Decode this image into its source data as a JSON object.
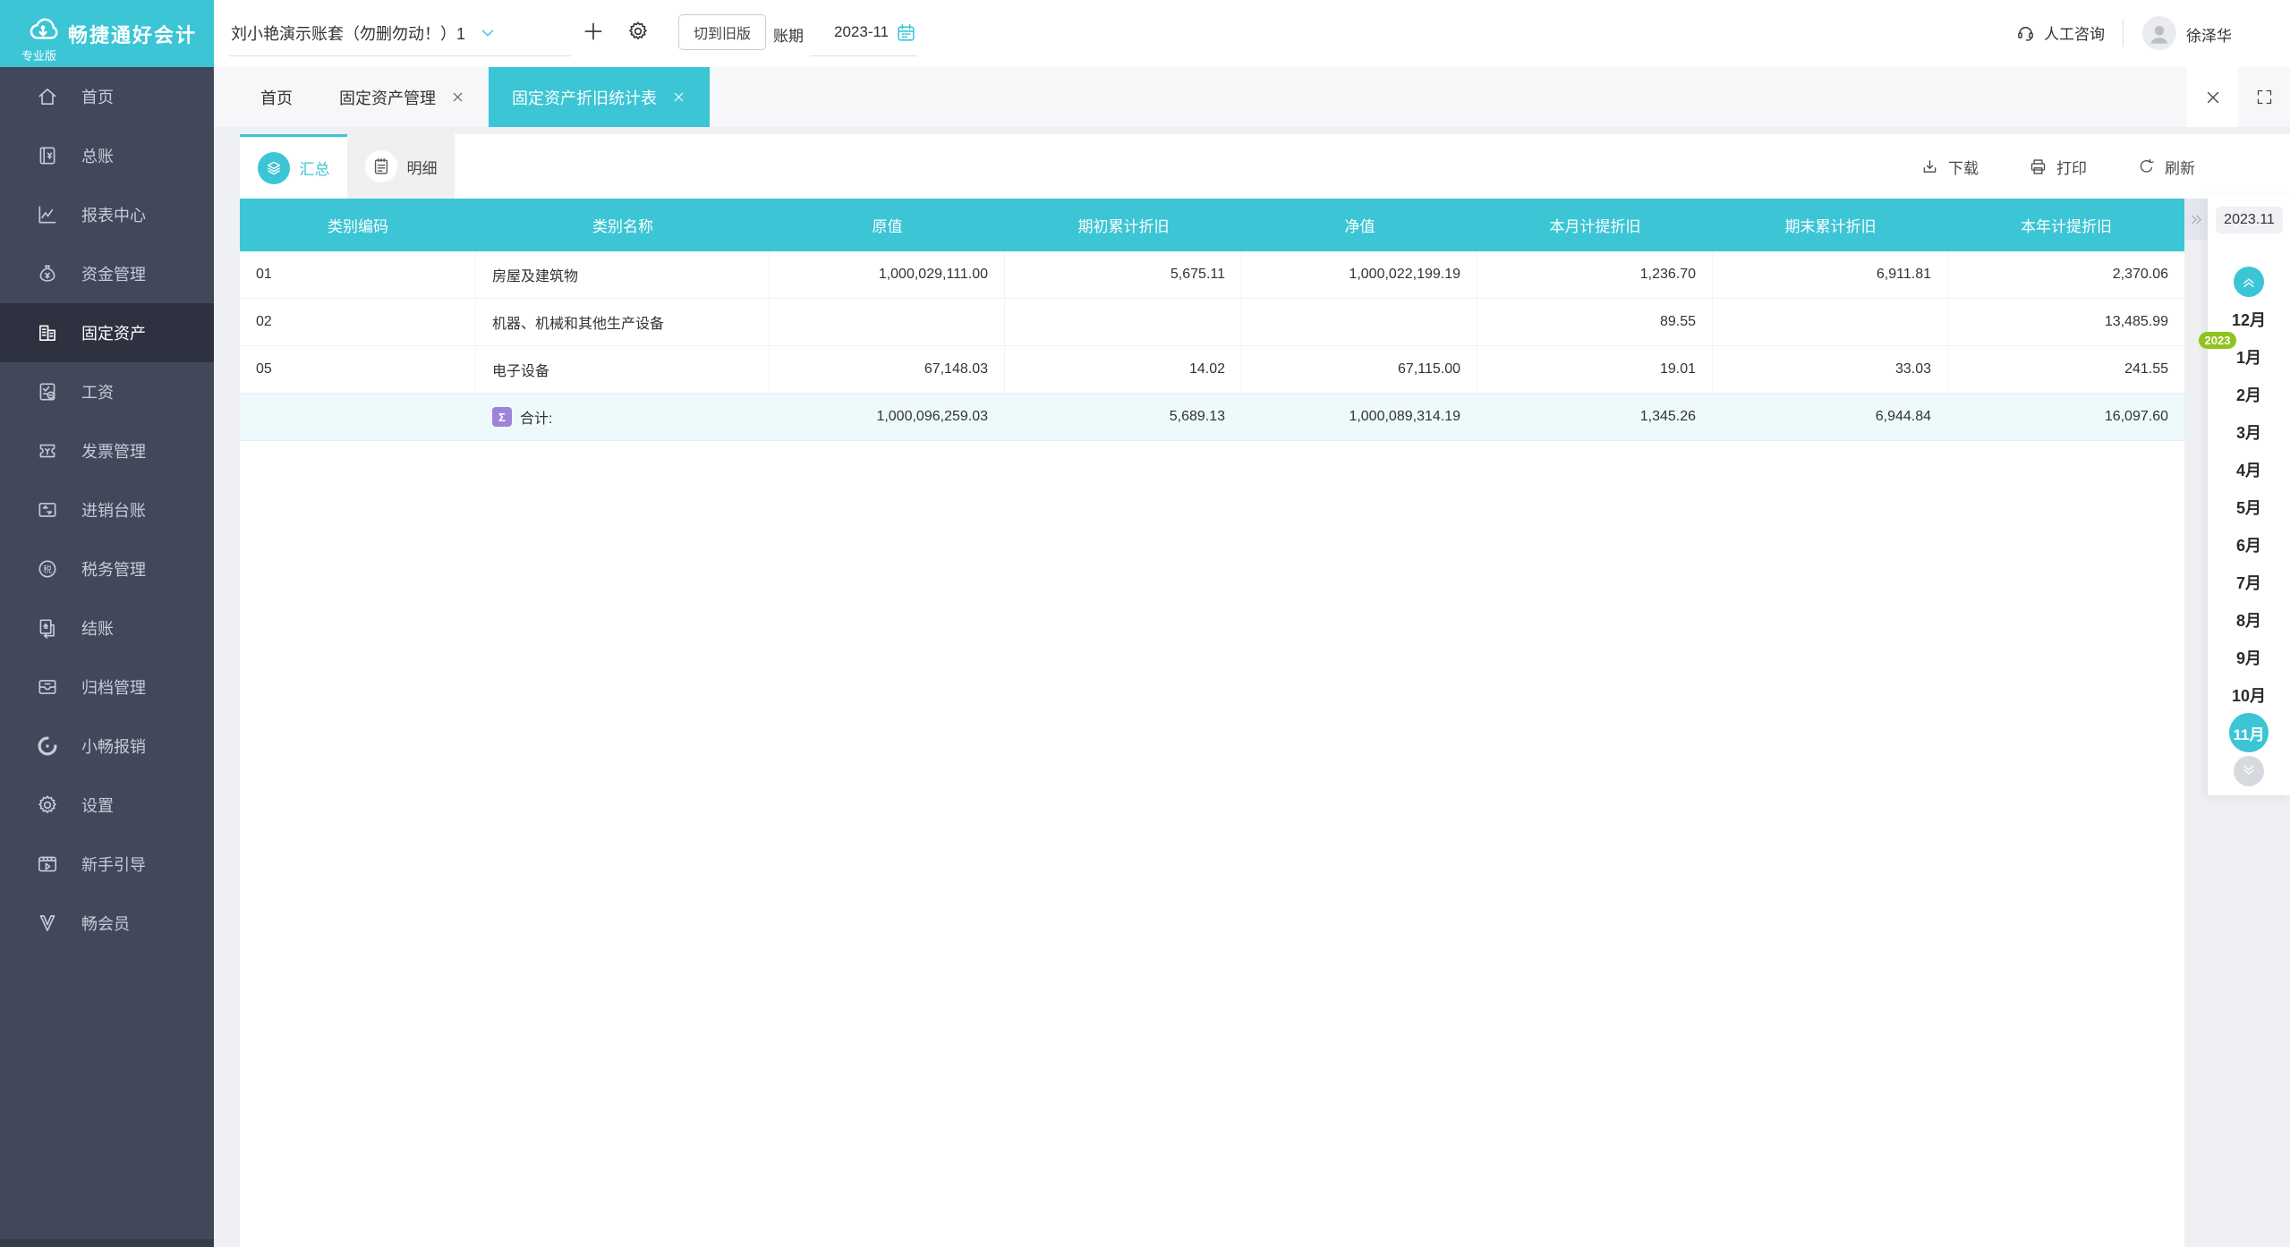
{
  "colors": {
    "accent": "#3bc5d5",
    "sidebar_bg": "#42485a",
    "sidebar_active_bg": "#2d3140",
    "total_row_bg": "#eef9fc",
    "year_badge_green": "#8fc31e",
    "sum_icon_purple": "#9d84da"
  },
  "topbar": {
    "brand": {
      "name": "畅捷通好会计",
      "edition": "专业版"
    },
    "account": "刘小艳演示账套（勿删勿动！）1",
    "switch_old_label": "切到旧版",
    "period_label": "账期",
    "period_value": "2023-11",
    "support_label": "人工咨询",
    "username": "徐泽华"
  },
  "sidebar": {
    "items": [
      {
        "id": "home",
        "icon": "home",
        "label": "首页"
      },
      {
        "id": "general-ledger",
        "icon": "ledger",
        "label": "总账"
      },
      {
        "id": "report-center",
        "icon": "chart",
        "label": "报表中心"
      },
      {
        "id": "funds-management",
        "icon": "moneybag",
        "label": "资金管理"
      },
      {
        "id": "fixed-assets",
        "icon": "building",
        "label": "固定资产",
        "active": true
      },
      {
        "id": "payroll",
        "icon": "payroll",
        "label": "工资"
      },
      {
        "id": "invoice-management",
        "icon": "invoice",
        "label": "发票管理"
      },
      {
        "id": "purchase-sales-ledger",
        "icon": "inout",
        "label": "进销台账"
      },
      {
        "id": "tax-management",
        "icon": "tax",
        "label": "税务管理"
      },
      {
        "id": "closing",
        "icon": "closing",
        "label": "结账"
      },
      {
        "id": "archive-management",
        "icon": "archive",
        "label": "归档管理"
      },
      {
        "id": "xiaochang-expense",
        "icon": "creport",
        "label": "小畅报销"
      },
      {
        "id": "settings",
        "icon": "gear",
        "label": "设置"
      },
      {
        "id": "beginner-guide",
        "icon": "guide",
        "label": "新手引导"
      },
      {
        "id": "chang-member",
        "icon": "member",
        "label": "畅会员"
      }
    ]
  },
  "tabs": [
    {
      "id": "home",
      "label": "首页",
      "closable": false,
      "active": false
    },
    {
      "id": "fixed-assets-management",
      "label": "固定资产管理",
      "closable": true,
      "active": false
    },
    {
      "id": "fixed-assets-depreciation-report",
      "label": "固定资产折旧统计表",
      "closable": true,
      "active": true
    }
  ],
  "toolbar": {
    "view_tabs": [
      {
        "id": "summary",
        "icon": "layers",
        "label": "汇总",
        "active": true
      },
      {
        "id": "detail",
        "icon": "note",
        "label": "明细",
        "active": false
      }
    ],
    "actions": [
      {
        "id": "download",
        "icon": "download",
        "label": "下载"
      },
      {
        "id": "print",
        "icon": "printer",
        "label": "打印"
      },
      {
        "id": "refresh",
        "icon": "refresh",
        "label": "刷新"
      }
    ]
  },
  "table": {
    "columns": [
      "类别编码",
      "类别名称",
      "原值",
      "期初累计折旧",
      "净值",
      "本月计提折旧",
      "期末累计折旧",
      "本年计提折旧"
    ],
    "rows": [
      [
        "01",
        "房屋及建筑物",
        "1,000,029,111.00",
        "5,675.11",
        "1,000,022,199.19",
        "1,236.70",
        "6,911.81",
        "2,370.06"
      ],
      [
        "02",
        "机器、机械和其他生产设备",
        "",
        "",
        "",
        "89.55",
        "",
        "13,485.99"
      ],
      [
        "05",
        "电子设备",
        "67,148.03",
        "14.02",
        "67,115.00",
        "19.01",
        "33.03",
        "241.55"
      ]
    ],
    "total": {
      "label": "合计:",
      "values": [
        "1,000,096,259.03",
        "5,689.13",
        "1,000,089,314.19",
        "1,345.26",
        "6,944.84",
        "16,097.60"
      ]
    }
  },
  "month_panel": {
    "current_period": "2023.11",
    "year_badge": "2023",
    "months": [
      "12月",
      "1月",
      "2月",
      "3月",
      "4月",
      "5月",
      "6月",
      "7月",
      "8月",
      "9月",
      "10月",
      "11月"
    ],
    "selected_month": "11月"
  }
}
